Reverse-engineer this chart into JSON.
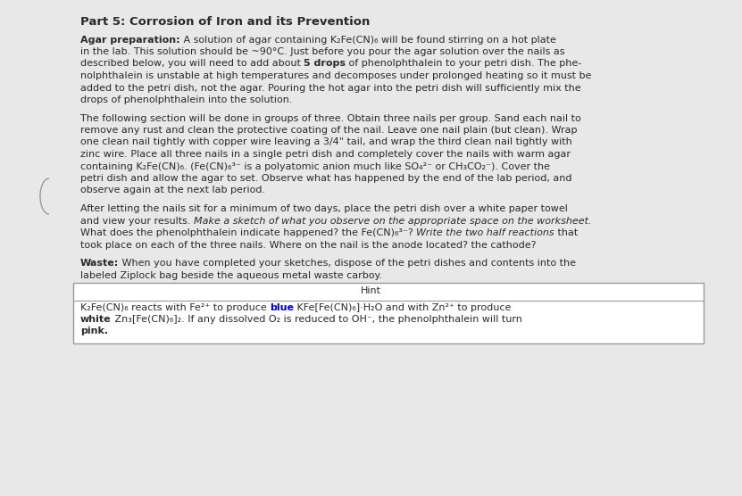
{
  "background_color": "#e8e8e8",
  "page_background": "#ffffff",
  "text_color": "#2a2a2a",
  "hint_box_border": "#999999",
  "title": "Part 5: Corrosion of Iron and its Prevention",
  "lines": [
    {
      "type": "title",
      "text": "Part 5: Corrosion of Iron and its Prevention"
    },
    {
      "type": "para_gap"
    },
    {
      "type": "mixed",
      "segments": [
        {
          "text": "Agar preparation:",
          "bold": true
        },
        {
          "text": " A solution of agar containing K₂Fe(CN)₆ will be found stirring on a hot plate"
        }
      ]
    },
    {
      "type": "plain",
      "text": "in the lab. This solution should be ~90°C. Just before you pour the agar solution over the nails as"
    },
    {
      "type": "mixed",
      "segments": [
        {
          "text": "described below, you will need to add about "
        },
        {
          "text": "5 drops",
          "bold": true
        },
        {
          "text": " of phenolphthalein to your petri dish. The phe-"
        }
      ]
    },
    {
      "type": "plain",
      "text": "nolphthalein is unstable at high temperatures and decomposes under prolonged heating so it must be"
    },
    {
      "type": "plain",
      "text": "added to the petri dish, not the agar. Pouring the hot agar into the petri dish will sufficiently mix the"
    },
    {
      "type": "plain",
      "text": "drops of phenolphthalein into the solution."
    },
    {
      "type": "para_gap"
    },
    {
      "type": "plain",
      "text": "The following section will be done in groups of three. Obtain three nails per group. Sand each nail to"
    },
    {
      "type": "plain",
      "text": "remove any rust and clean the protective coating of the nail. Leave one nail plain (but clean). Wrap"
    },
    {
      "type": "plain",
      "text": "one clean nail tightly with copper wire leaving a 3/4\" tail, and wrap the third clean nail tightly with"
    },
    {
      "type": "plain",
      "text": "zinc wire. Place all three nails in a single petri dish and completely cover the nails with warm agar"
    },
    {
      "type": "plain",
      "text": "containing K₂Fe(CN)₆. (Fe(CN)₆³⁻ is a polyatomic anion much like SO₄²⁻ or CH₃CO₂⁻). Cover the"
    },
    {
      "type": "plain",
      "text": "petri dish and allow the agar to set. Observe what has happened by the end of the lab period, and"
    },
    {
      "type": "plain",
      "text": "observe again at the next lab period."
    },
    {
      "type": "para_gap"
    },
    {
      "type": "plain",
      "text": "After letting the nails sit for a minimum of two days, place the petri dish over a white paper towel"
    },
    {
      "type": "mixed",
      "segments": [
        {
          "text": "and view your results. "
        },
        {
          "text": "Make a sketch of what you observe on the appropriate space on the worksheet.",
          "italic": true
        }
      ]
    },
    {
      "type": "mixed",
      "segments": [
        {
          "text": "What does the phenolphthalein indicate happened? the Fe(CN)₆³⁻? "
        },
        {
          "text": "Write the two half reactions",
          "italic": true
        },
        {
          "text": " that"
        }
      ]
    },
    {
      "type": "plain",
      "text": "took place on each of the three nails. Where on the nail is the anode located? the cathode?"
    },
    {
      "type": "para_gap"
    },
    {
      "type": "mixed",
      "segments": [
        {
          "text": "Waste:",
          "bold": true
        },
        {
          "text": " When you have completed your sketches, dispose of the petri dishes and contents into the"
        }
      ]
    },
    {
      "type": "plain",
      "text": "labeled Ziplock bag beside the aqueous metal waste carboy."
    },
    {
      "type": "hint_start"
    },
    {
      "type": "hint_title",
      "text": "Hint"
    },
    {
      "type": "hint_line"
    },
    {
      "type": "hint_mixed",
      "segments": [
        {
          "text": "K₂Fe(CN)₆ reacts with Fe²⁺ to produce "
        },
        {
          "text": "blue",
          "bold": true,
          "color": "#0000cc"
        },
        {
          "text": " KFe[Fe(CN)₆]·H₂O and with Zn²⁺ to produce"
        }
      ]
    },
    {
      "type": "hint_mixed",
      "segments": [
        {
          "text": "white",
          "bold": true
        },
        {
          "text": " Zn₃[Fe(CN)₆]₂. If any dissolved O₂ is reduced to OH⁻, the phenolphthalein will turn"
        }
      ]
    },
    {
      "type": "hint_mixed",
      "segments": [
        {
          "text": "pink.",
          "bold": true
        }
      ]
    },
    {
      "type": "hint_end"
    }
  ]
}
